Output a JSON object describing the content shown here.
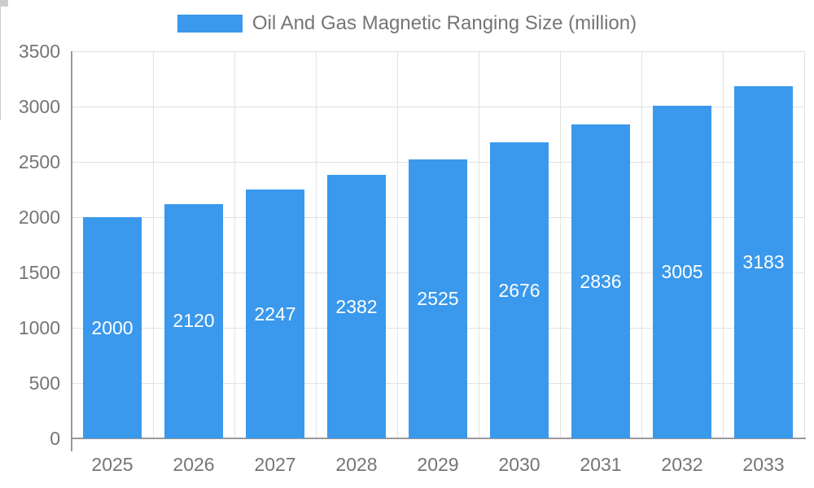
{
  "chart_data": {
    "type": "bar",
    "title": "Oil And Gas Magnetic Ranging Size (million)",
    "categories": [
      "2025",
      "2026",
      "2027",
      "2028",
      "2029",
      "2030",
      "2031",
      "2032",
      "2033"
    ],
    "values": [
      2000,
      2120,
      2247,
      2382,
      2525,
      2676,
      2836,
      3005,
      3183
    ],
    "xlabel": "",
    "ylabel": "",
    "ylim": [
      0,
      3500
    ],
    "ytick_step": 500,
    "yticks": [
      0,
      500,
      1000,
      1500,
      2000,
      2500,
      3000,
      3500
    ],
    "grid": "horizontal-and-vertical",
    "legend_position": "top-center",
    "value_labels": "inside-center-white",
    "colors": {
      "bar": "#3A99EC",
      "grid": "#E2E2E2",
      "axis": "#999999",
      "tick": "#CCCCCC",
      "text": "#757575",
      "bar_label": "#FFFFFF",
      "background": "#FFFFFF"
    }
  }
}
